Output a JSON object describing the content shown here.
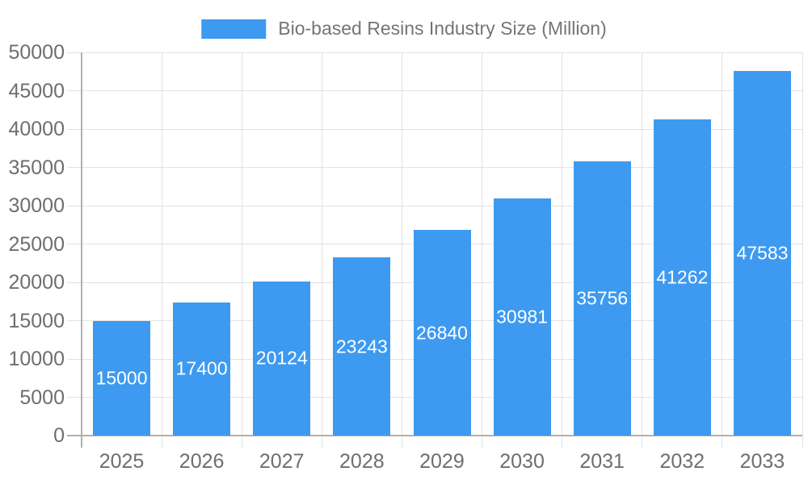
{
  "legend": {
    "label": "Bio-based Resins Industry Size (Million)"
  },
  "colors": {
    "bar": "#3D9AF0",
    "grid": "#e2e2e2",
    "axis": "#b0b0b0",
    "tick_text": "#6e6e6e",
    "legend_text": "#757575",
    "value_label_text": "#ffffff",
    "background": "#ffffff"
  },
  "chart_data": {
    "type": "bar",
    "title": "Bio-based Resins Industry Size (Million)",
    "categories": [
      "2025",
      "2026",
      "2027",
      "2028",
      "2029",
      "2030",
      "2031",
      "2032",
      "2033"
    ],
    "values": [
      15000,
      17400,
      20124,
      23243,
      26840,
      30981,
      35756,
      41262,
      47583
    ],
    "value_labels": [
      "15000",
      "17400",
      "20124",
      "23243",
      "26840",
      "30981",
      "35756",
      "41262",
      "47583"
    ],
    "xlabel": "",
    "ylabel": "",
    "ylim": [
      0,
      50000
    ],
    "ytick_step": 5000,
    "yticks": [
      0,
      5000,
      10000,
      15000,
      20000,
      25000,
      30000,
      35000,
      40000,
      45000,
      50000
    ],
    "grid": true,
    "legend_position": "top-center",
    "value_labels_inside_bars": true
  }
}
